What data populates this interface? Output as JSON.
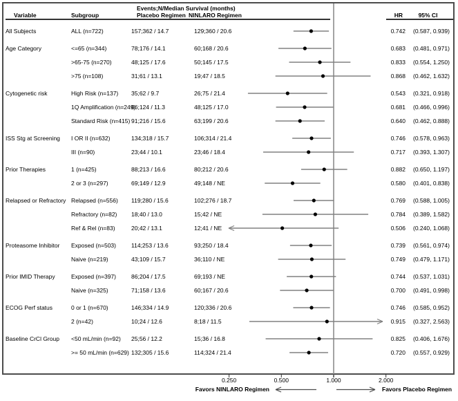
{
  "colors": {
    "ci_line": "#808080",
    "marker": "#000000",
    "ref_line": "#8c8c8c",
    "frame": "#4c4c4c",
    "rule": "#333333",
    "arrow": "#4d4d4d",
    "text": "#000000"
  },
  "chart_data": {
    "type": "forest",
    "columns": {
      "variable": "Variable",
      "subgroup": "Subgroup",
      "events_header": "Events;N/Median Survival (months)",
      "placebo": "Placebo Regimen",
      "ninlaro": "NINLARO Regimen",
      "hr": "HR",
      "ci": "95% CI"
    },
    "x_axis": {
      "scale": "log2",
      "ticks": [
        0.25,
        0.5,
        1.0,
        2.0
      ],
      "tick_labels": [
        "0.250",
        "0.500",
        "1.000",
        "2.000"
      ],
      "ref_line": 1.0,
      "visible_range": [
        0.245,
        1.95
      ]
    },
    "footer": {
      "favors_left": "Favors NINLARO Regimen",
      "favors_right": "Favors Placebo Regimen"
    },
    "rows": [
      {
        "variable": "All Subjects",
        "subgroup": "ALL (n=722)",
        "placebo": "157;362 / 14.7",
        "ninlaro": "129;360 / 20.6",
        "hr": "0.742",
        "ci": "(0.587, 0.939)",
        "est": 0.742,
        "lo": 0.587,
        "hi": 0.939
      },
      {
        "variable": "Age Category",
        "subgroup": "<=65 (n=344)",
        "placebo": "78;176 / 14.1",
        "ninlaro": "60;168 / 20.6",
        "hr": "0.683",
        "ci": "(0.481, 0.971)",
        "est": 0.683,
        "lo": 0.481,
        "hi": 0.971
      },
      {
        "variable": "",
        "subgroup": ">65-75 (n=270)",
        "placebo": "48;125 / 17.6",
        "ninlaro": "50;145 / 17.5",
        "hr": "0.833",
        "ci": "(0.554, 1.250)",
        "est": 0.833,
        "lo": 0.554,
        "hi": 1.25
      },
      {
        "variable": "",
        "subgroup": ">75 (n=108)",
        "placebo": "31;61 / 13.1",
        "ninlaro": "19;47 / 18.5",
        "hr": "0.868",
        "ci": "(0.462, 1.632)",
        "est": 0.868,
        "lo": 0.462,
        "hi": 1.632
      },
      {
        "variable": "Cytogenetic risk",
        "subgroup": "High Risk (n=137)",
        "placebo": "35;62 / 9.7",
        "ninlaro": "26;75 / 21.4",
        "hr": "0.543",
        "ci": "(0.321, 0.918)",
        "est": 0.543,
        "lo": 0.321,
        "hi": 0.918
      },
      {
        "variable": "",
        "subgroup": "1Q Amplification (n=249)",
        "placebo": "66;124 / 11.3",
        "ninlaro": "48;125 / 17.0",
        "hr": "0.681",
        "ci": "(0.466, 0.996)",
        "est": 0.681,
        "lo": 0.466,
        "hi": 0.996
      },
      {
        "variable": "",
        "subgroup": "Standard Risk (n=415)",
        "placebo": "91;216 / 15.6",
        "ninlaro": "63;199 / 20.6",
        "hr": "0.640",
        "ci": "(0.462, 0.888)",
        "est": 0.64,
        "lo": 0.462,
        "hi": 0.888
      },
      {
        "variable": "ISS Stg at Screening",
        "subgroup": "I OR II (n=632)",
        "placebo": "134;318 / 15.7",
        "ninlaro": "106;314 / 21.4",
        "hr": "0.746",
        "ci": "(0.578, 0.963)",
        "est": 0.746,
        "lo": 0.578,
        "hi": 0.963
      },
      {
        "variable": "",
        "subgroup": "III (n=90)",
        "placebo": "23;44 / 10.1",
        "ninlaro": "23;46 / 18.4",
        "hr": "0.717",
        "ci": "(0.393, 1.307)",
        "est": 0.717,
        "lo": 0.393,
        "hi": 1.307
      },
      {
        "variable": "Prior Therapies",
        "subgroup": "1 (n=425)",
        "placebo": "88;213 / 16.6",
        "ninlaro": "80;212 / 20.6",
        "hr": "0.882",
        "ci": "(0.650, 1.197)",
        "est": 0.882,
        "lo": 0.65,
        "hi": 1.197
      },
      {
        "variable": "",
        "subgroup": "2 or 3 (n=297)",
        "placebo": "69;149 / 12.9",
        "ninlaro": "49;148 / NE",
        "hr": "0.580",
        "ci": "(0.401, 0.838)",
        "est": 0.58,
        "lo": 0.401,
        "hi": 0.838
      },
      {
        "variable": "Relapsed or Refractory",
        "subgroup": "Relapsed (n=556)",
        "placebo": "119;280 / 15.6",
        "ninlaro": "102;276 / 18.7",
        "hr": "0.769",
        "ci": "(0.588, 1.005)",
        "est": 0.769,
        "lo": 0.588,
        "hi": 1.005
      },
      {
        "variable": "",
        "subgroup": "Refractory (n=82)",
        "placebo": "18;40 / 13.0",
        "ninlaro": "15;42 / NE",
        "hr": "0.784",
        "ci": "(0.389, 1.582)",
        "est": 0.784,
        "lo": 0.389,
        "hi": 1.582
      },
      {
        "variable": "",
        "subgroup": "Ref & Rel (n=83)",
        "placebo": "20;42 / 13.1",
        "ninlaro": "12;41 / NE",
        "hr": "0.506",
        "ci": "(0.240, 1.068)",
        "est": 0.506,
        "lo": 0.24,
        "hi": 1.068
      },
      {
        "variable": "Proteasome Inhibitor",
        "subgroup": "Exposed (n=503)",
        "placebo": "114;253 / 13.6",
        "ninlaro": "93;250 / 18.4",
        "hr": "0.739",
        "ci": "(0.561, 0.974)",
        "est": 0.739,
        "lo": 0.561,
        "hi": 0.974
      },
      {
        "variable": "",
        "subgroup": "Naive (n=219)",
        "placebo": "43;109 / 15.7",
        "ninlaro": "36;110 / NE",
        "hr": "0.749",
        "ci": "(0.479, 1.171)",
        "est": 0.749,
        "lo": 0.479,
        "hi": 1.171
      },
      {
        "variable": "Prior IMID Therapy",
        "subgroup": "Exposed (n=397)",
        "placebo": "86;204 / 17.5",
        "ninlaro": "69;193 / NE",
        "hr": "0.744",
        "ci": "(0.537, 1.031)",
        "est": 0.744,
        "lo": 0.537,
        "hi": 1.031
      },
      {
        "variable": "",
        "subgroup": "Naive (n=325)",
        "placebo": "71;158 / 13.6",
        "ninlaro": "60;167 / 20.6",
        "hr": "0.700",
        "ci": "(0.491, 0.998)",
        "est": 0.7,
        "lo": 0.491,
        "hi": 0.998
      },
      {
        "variable": "ECOG Perf status",
        "subgroup": "0 or 1 (n=670)",
        "placebo": "146;334 / 14.9",
        "ninlaro": "120;336 / 20.6",
        "hr": "0.746",
        "ci": "(0.585, 0.952)",
        "est": 0.746,
        "lo": 0.585,
        "hi": 0.952
      },
      {
        "variable": "",
        "subgroup": "2 (n=42)",
        "placebo": "10;24 / 12.6",
        "ninlaro": "8;18 / 11.5",
        "hr": "0.915",
        "ci": "(0.327, 2.563)",
        "est": 0.915,
        "lo": 0.327,
        "hi": 2.563
      },
      {
        "variable": "Baseline CrCl Group",
        "subgroup": "<50 mL/min (n=92)",
        "placebo": "25;56 / 12.2",
        "ninlaro": "15;36 / 16.8",
        "hr": "0.825",
        "ci": "(0.406, 1.676)",
        "est": 0.825,
        "lo": 0.406,
        "hi": 1.676
      },
      {
        "variable": "",
        "subgroup": ">= 50 mL/min (n=629)",
        "placebo": "132;305 / 15.6",
        "ninlaro": "114;324 / 21.4",
        "hr": "0.720",
        "ci": "(0.557, 0.929)",
        "est": 0.72,
        "lo": 0.557,
        "hi": 0.929
      }
    ]
  }
}
